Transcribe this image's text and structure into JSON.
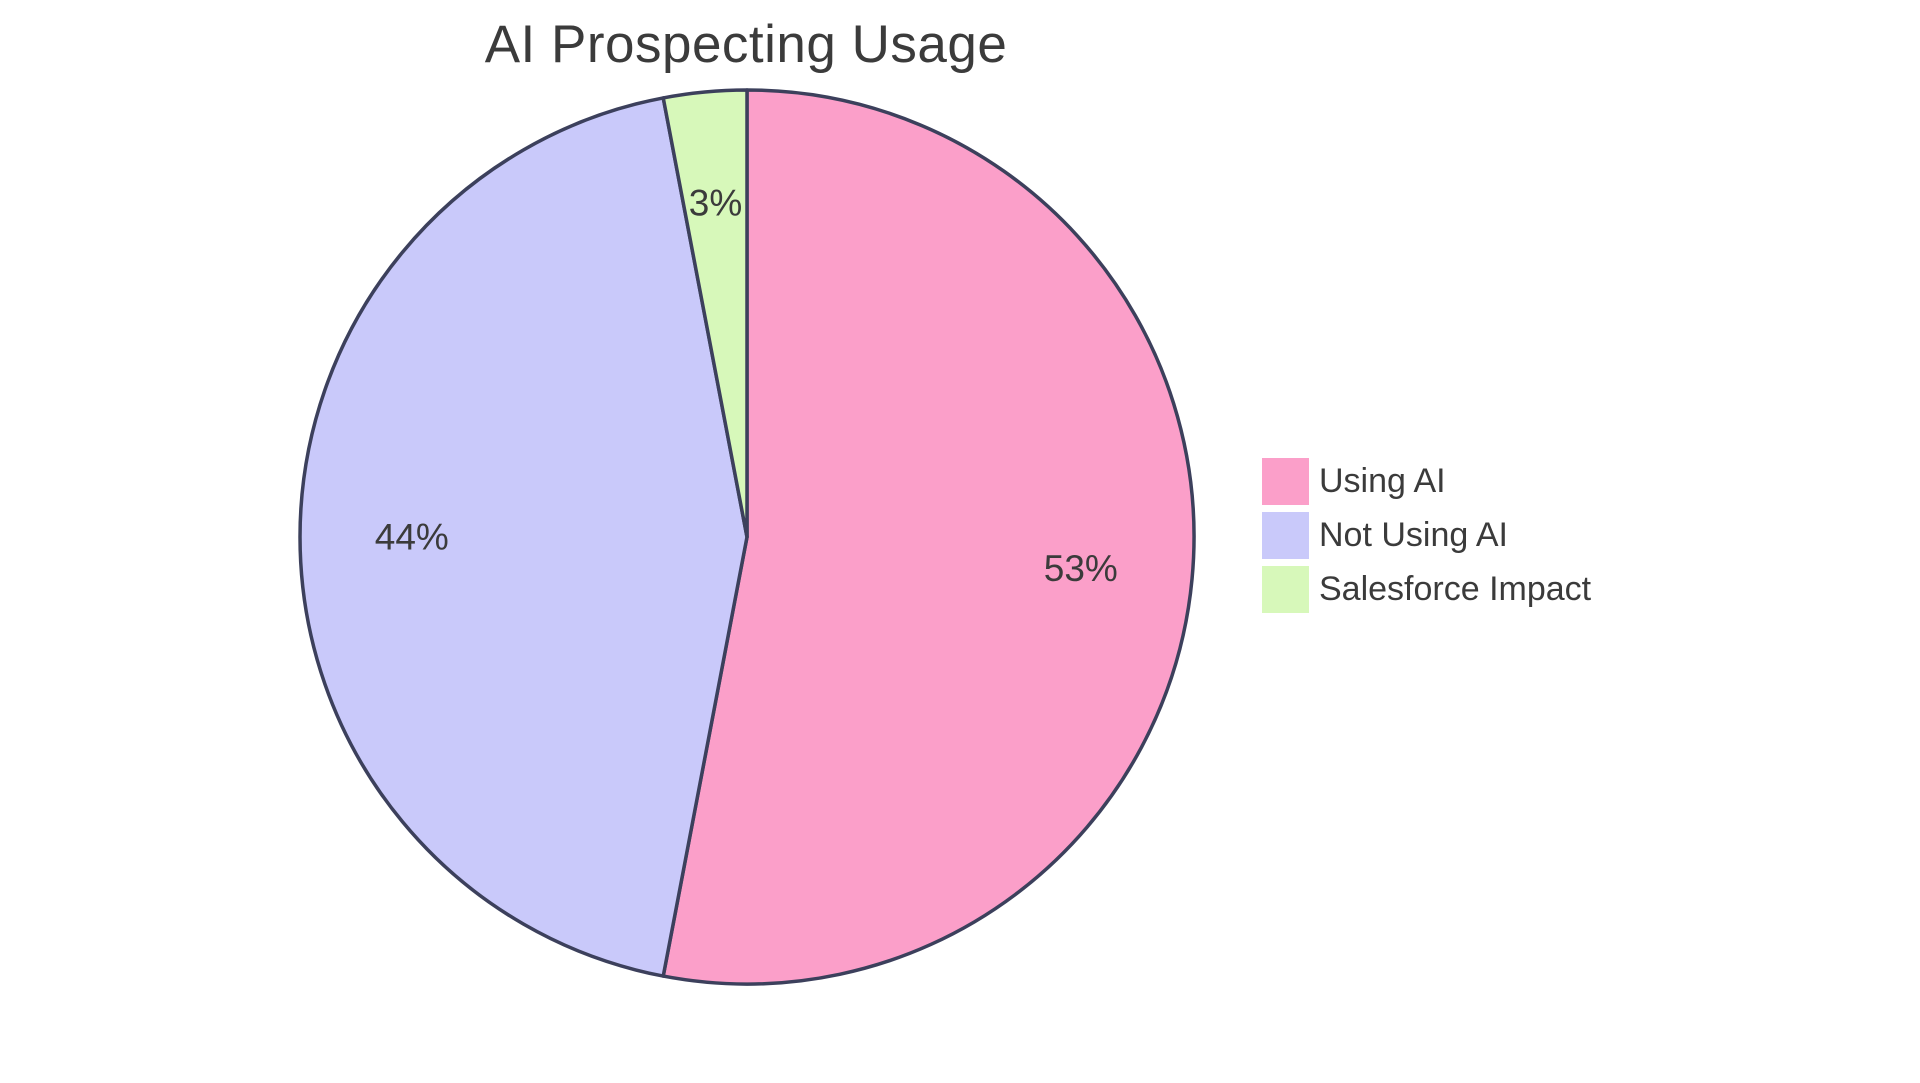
{
  "page": {
    "background_color": "#ffffff",
    "text_color": "#3b3b3b"
  },
  "chart_data": {
    "type": "pie",
    "title": "AI Prospecting Usage",
    "direction": "clockwise",
    "start_angle": "12 o'clock",
    "legend_position": "right",
    "stroke_color": "#3c405c",
    "stroke_width": 3.5,
    "label_color": "#3b3b3b",
    "slices": [
      {
        "label": "Using AI",
        "value": 53,
        "display": "53%",
        "color": "#fb9fc9"
      },
      {
        "label": "Not Using AI",
        "value": 44,
        "display": "44%",
        "color": "#c9c9fa"
      },
      {
        "label": "Salesforce Impact",
        "value": 3,
        "display": "3%",
        "color": "#d7f8ba"
      }
    ]
  }
}
